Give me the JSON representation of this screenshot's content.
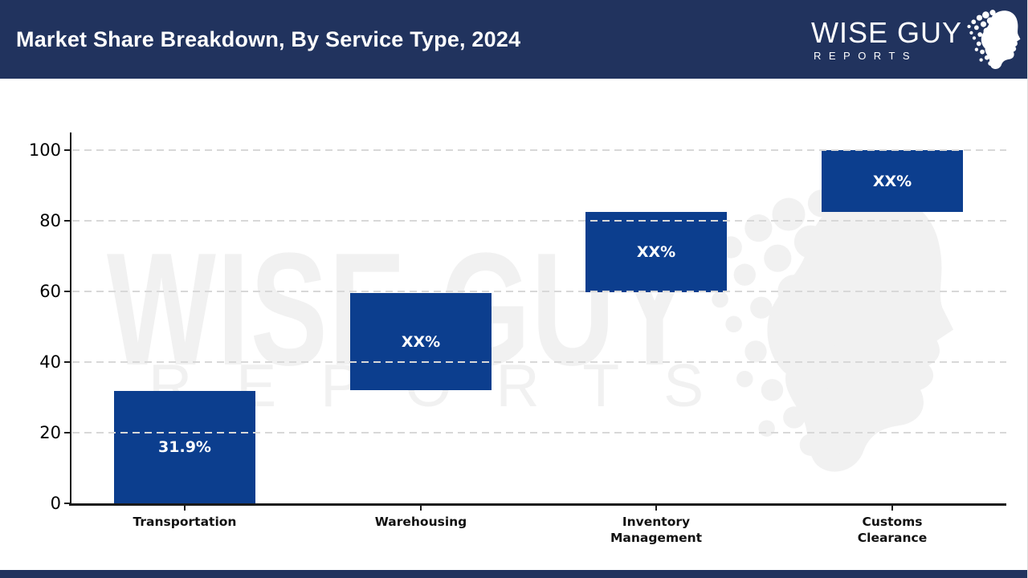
{
  "header": {
    "title": "Market Share Breakdown, By Service Type, 2024",
    "logo": {
      "line1": "WISE GUY",
      "line2": "REPORTS"
    }
  },
  "watermark": {
    "line1": "WISE GUY",
    "line2": "REPORTS"
  },
  "colors": {
    "header_bg": "#21335e",
    "bar": "#0c3e8e",
    "grid": "#d8d8d8",
    "axis": "#1a1a1a",
    "bar_label_text": "#ffffff",
    "watermark": "#f1f1f1"
  },
  "chart_data": {
    "type": "bar",
    "subtype": "floating-waterfall",
    "title": "Market Share Breakdown, By Service Type, 2024",
    "categories": [
      "Transportation",
      "Warehousing",
      "Inventory Management",
      "Customs Clearance"
    ],
    "series": [
      {
        "name": "Market Share (%)",
        "ranges": [
          [
            0,
            31.9
          ],
          [
            32,
            59.5
          ],
          [
            59.7,
            82.5
          ],
          [
            82.5,
            100
          ]
        ]
      }
    ],
    "bar_labels": [
      "31.9%",
      "XX%",
      "XX%",
      "XX%"
    ],
    "xlabel": "",
    "ylabel": "",
    "ylim": [
      0,
      100
    ],
    "yticks": [
      0,
      20,
      40,
      60,
      80,
      100
    ],
    "grid": "horizontal-dashed",
    "legend": "none"
  }
}
